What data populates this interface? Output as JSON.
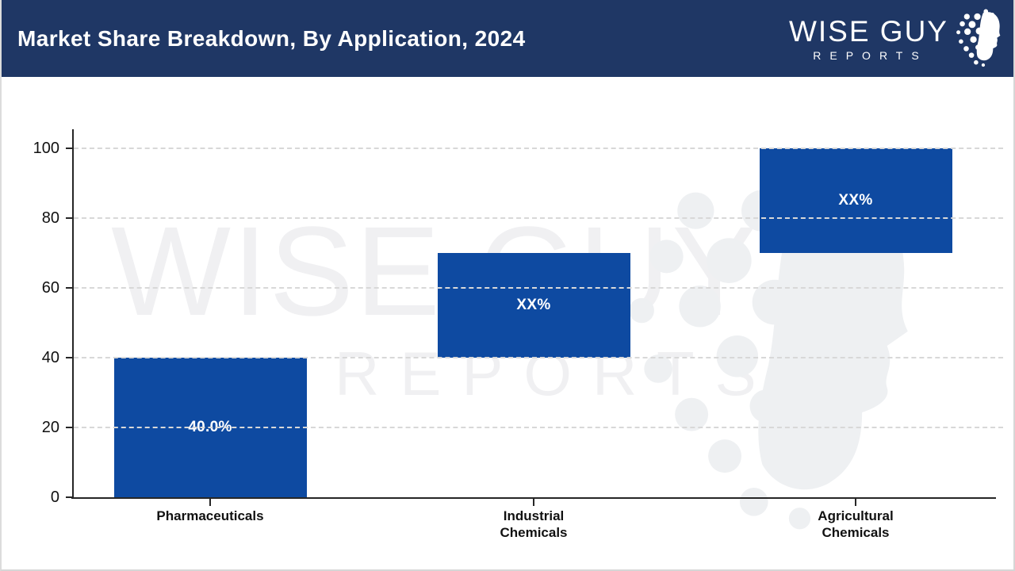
{
  "header": {
    "title": "Market Share Breakdown, By Application, 2024",
    "background_color": "#1f3765",
    "logo": {
      "line1": "WISE GUY",
      "line2": "REPORTS",
      "face_icon": "dotted-face-profile"
    }
  },
  "watermark": {
    "line1": "WISE GUY",
    "line2": "REPORTS",
    "face_icon": "dotted-face-profile",
    "color": "#f0f0f2"
  },
  "chart_data": {
    "type": "bar",
    "subtype": "floating-waterfall",
    "title": "Market Share Breakdown, By Application, 2024",
    "categories": [
      "Pharmaceuticals",
      "Industrial Chemicals",
      "Agricultural Chemicals"
    ],
    "category_label_lines": [
      [
        "Pharmaceuticals"
      ],
      [
        "Industrial",
        "Chemicals"
      ],
      [
        "Agricultural",
        "Chemicals"
      ]
    ],
    "series": [
      {
        "name": "Market Share (%)",
        "segments": [
          {
            "category": "Pharmaceuticals",
            "start": 0,
            "end": 40,
            "label": "40.0%"
          },
          {
            "category": "Industrial Chemicals",
            "start": 40,
            "end": 70,
            "label": "XX%"
          },
          {
            "category": "Agricultural Chemicals",
            "start": 70,
            "end": 100,
            "label": "XX%"
          }
        ]
      }
    ],
    "yticks": [
      0,
      20,
      40,
      60,
      80,
      100
    ],
    "ylim": [
      0,
      105.5
    ],
    "xlabel": "",
    "ylabel": "",
    "grid": "dashed-horizontal",
    "legend": "none",
    "bar_color": "#0e4aa1",
    "bar_value_label_color": "#ffffff",
    "axis_color": "#262626",
    "grid_color": "#d8d8d8"
  }
}
